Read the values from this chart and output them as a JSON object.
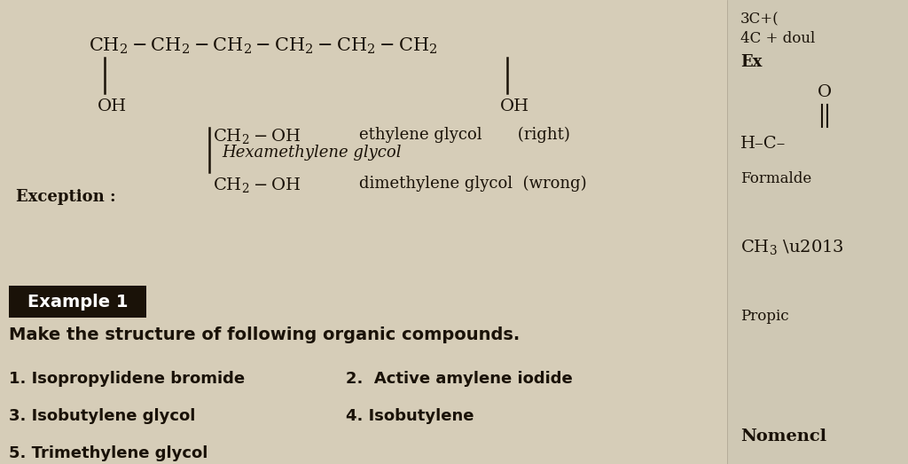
{
  "left_bg": "#d6cdb8",
  "right_bg": "#cfc8b4",
  "text_color": "#1a1208",
  "title_bg": "#1a1208",
  "title_text_color": "#ffffff",
  "hexamethylene_label": "Hexamethylene glycol",
  "exception_label": "Exception :",
  "example_title": "Example 1",
  "make_structure": "Make the structure of following organic compounds.",
  "item1": "1. Isopropylidene bromide",
  "item2": "2.  Active amylene iodide",
  "item3": "3. Isobutylene glycol",
  "item4": "4. Isobutylene",
  "item5": "5. Trimethylene glycol",
  "right_top1": "3C+(",
  "right_top2": "4C + doul",
  "right_ex": "Ex",
  "right_formalde": "Formalde",
  "right_propic": "Propic",
  "right_nomencl": "Nomencl"
}
